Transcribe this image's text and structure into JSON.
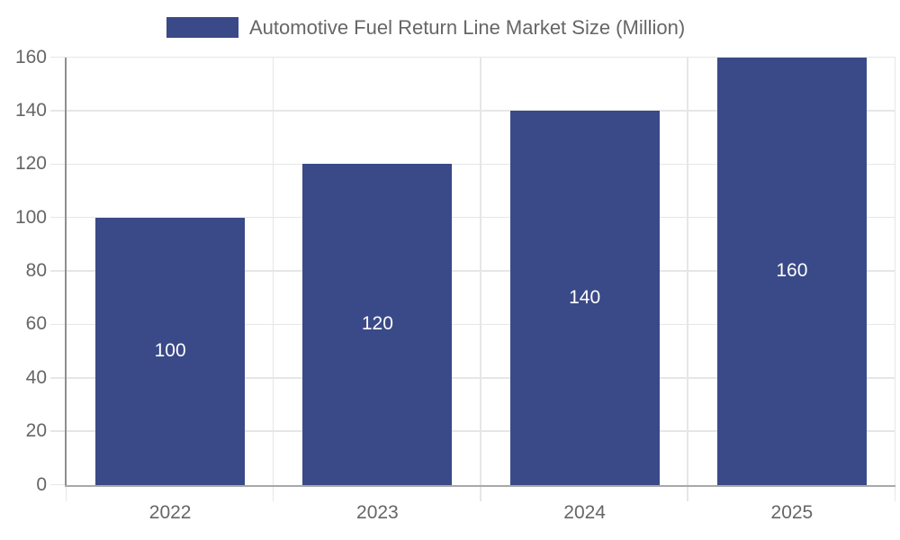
{
  "legend": {
    "label": "Automotive Fuel Return Line Market Size (Million)"
  },
  "colors": {
    "bar": "#3A4A88",
    "text": "#666666",
    "bar_value_text": "#FFFFFF",
    "grid": "#E6E6E6",
    "axis_x": "#A9A9A9",
    "axis_y": "#8F8F8F"
  },
  "chart_data": {
    "type": "bar",
    "title": "Automotive Fuel Return Line Market Size (Million)",
    "categories": [
      "2022",
      "2023",
      "2024",
      "2025"
    ],
    "values": [
      100,
      120,
      140,
      160
    ],
    "bar_labels": [
      "100",
      "120",
      "140",
      "160"
    ],
    "series": [
      {
        "name": "Automotive Fuel Return Line Market Size (Million)",
        "values": [
          100,
          120,
          140,
          160
        ]
      }
    ],
    "xlabel": "",
    "ylabel": "",
    "ylim": [
      0,
      160
    ],
    "ytick_step": 20,
    "yticks": [
      0,
      20,
      40,
      60,
      80,
      100,
      120,
      140,
      160
    ],
    "grid": true,
    "legend_position": "top"
  }
}
